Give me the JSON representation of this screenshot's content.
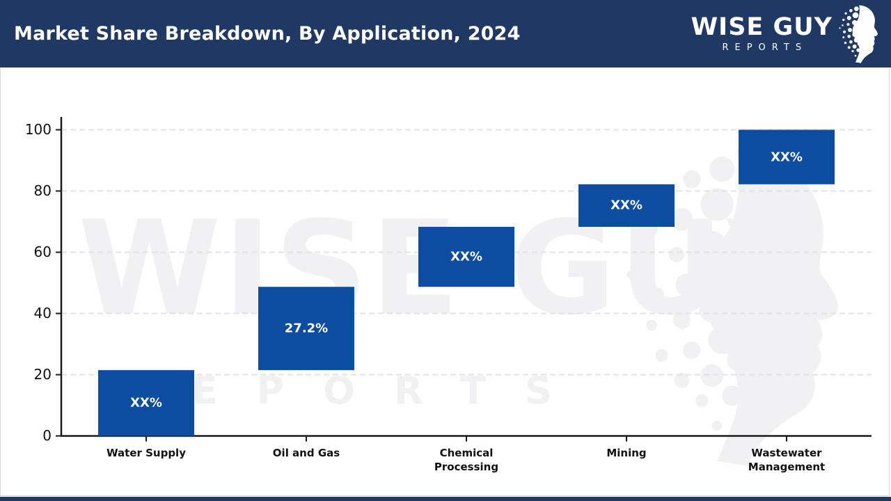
{
  "header": {
    "title": "Market Share Breakdown, By Application, 2024",
    "logo": {
      "line1": "WISE GUY",
      "line2": "REPORTS"
    }
  },
  "watermark": {
    "line1": "WISE GUY",
    "line2": "REPORTS"
  },
  "colors": {
    "header_bg": "#203864",
    "bar": "#0c4da2",
    "bar_label_text": "#ffffff",
    "gridline": "#e3e3e3",
    "axis": "#1a1a1a",
    "tick_text": "#111111",
    "watermark": "#f1f1f4"
  },
  "chart_data": {
    "type": "bar",
    "subtype": "waterfall",
    "title": "Market Share Breakdown, By Application, 2024",
    "xlabel": "",
    "ylabel": "",
    "categories": [
      "Water Supply",
      "Oil and Gas",
      "Chemical Processing",
      "Mining",
      "Wastewater Management"
    ],
    "segments": [
      {
        "category": "Water Supply",
        "start": 0,
        "end": 21.5,
        "label": "XX%"
      },
      {
        "category": "Oil and Gas",
        "start": 21.5,
        "end": 48.7,
        "label": "27.2%"
      },
      {
        "category": "Chemical Processing",
        "start": 48.7,
        "end": 68.3,
        "label": "XX%"
      },
      {
        "category": "Mining",
        "start": 68.3,
        "end": 82.2,
        "label": "XX%"
      },
      {
        "category": "Wastewater Management",
        "start": 82.2,
        "end": 100,
        "label": "XX%"
      }
    ],
    "yticks": [
      0,
      20,
      40,
      60,
      80,
      100
    ],
    "ylim": [
      0,
      105
    ],
    "grid": "horizontal-dashed",
    "legend": "none"
  }
}
